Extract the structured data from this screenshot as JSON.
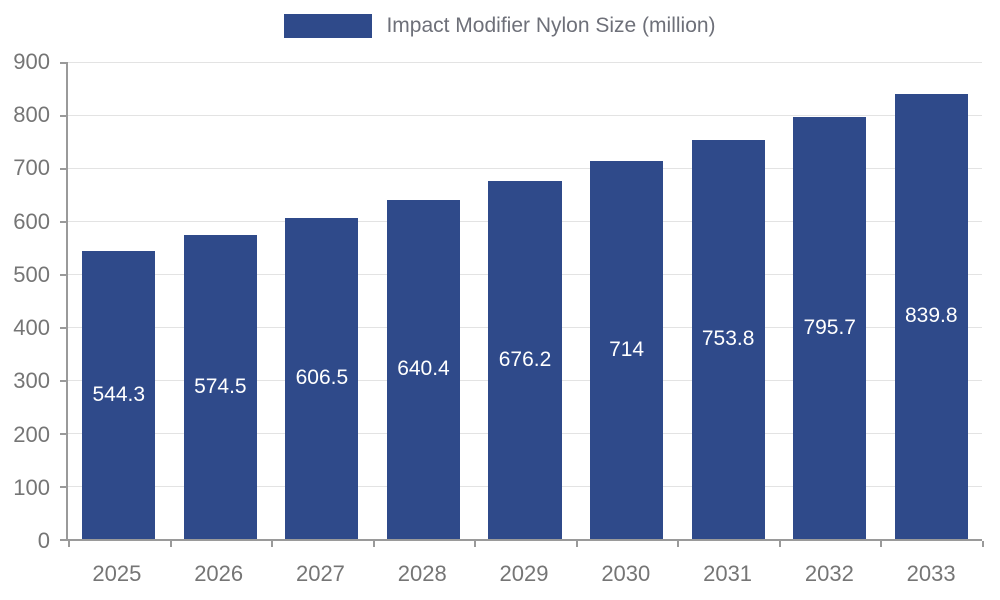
{
  "legend": {
    "label": "Impact Modifier Nylon Size (million)"
  },
  "colors": {
    "bar_fill": "#2f4a8a",
    "value_label_text": "#ffffff",
    "axis_label_text": "#757575",
    "legend_text": "#6e7079",
    "axis_line": "#9a9a9a",
    "gridline": "#e3e3e3",
    "background": "#ffffff"
  },
  "chart_data": {
    "type": "bar",
    "title": "Impact Modifier Nylon Size (million)",
    "categories": [
      "2025",
      "2026",
      "2027",
      "2028",
      "2029",
      "2030",
      "2031",
      "2032",
      "2033"
    ],
    "values": [
      544.3,
      574.5,
      606.5,
      640.4,
      676.2,
      714,
      753.8,
      795.7,
      839.8
    ],
    "value_labels": [
      "544.3",
      "574.5",
      "606.5",
      "640.4",
      "676.2",
      "714",
      "753.8",
      "795.7",
      "839.8"
    ],
    "xlabel": "",
    "ylabel": "",
    "ylim": [
      0,
      900
    ],
    "yticks": [
      0,
      100,
      200,
      300,
      400,
      500,
      600,
      700,
      800,
      900
    ],
    "grid": true,
    "grid_lines": "horizontal",
    "legend_position": "top-center",
    "bar_color": "#2f4a8a",
    "value_label_position": "center-inside"
  }
}
